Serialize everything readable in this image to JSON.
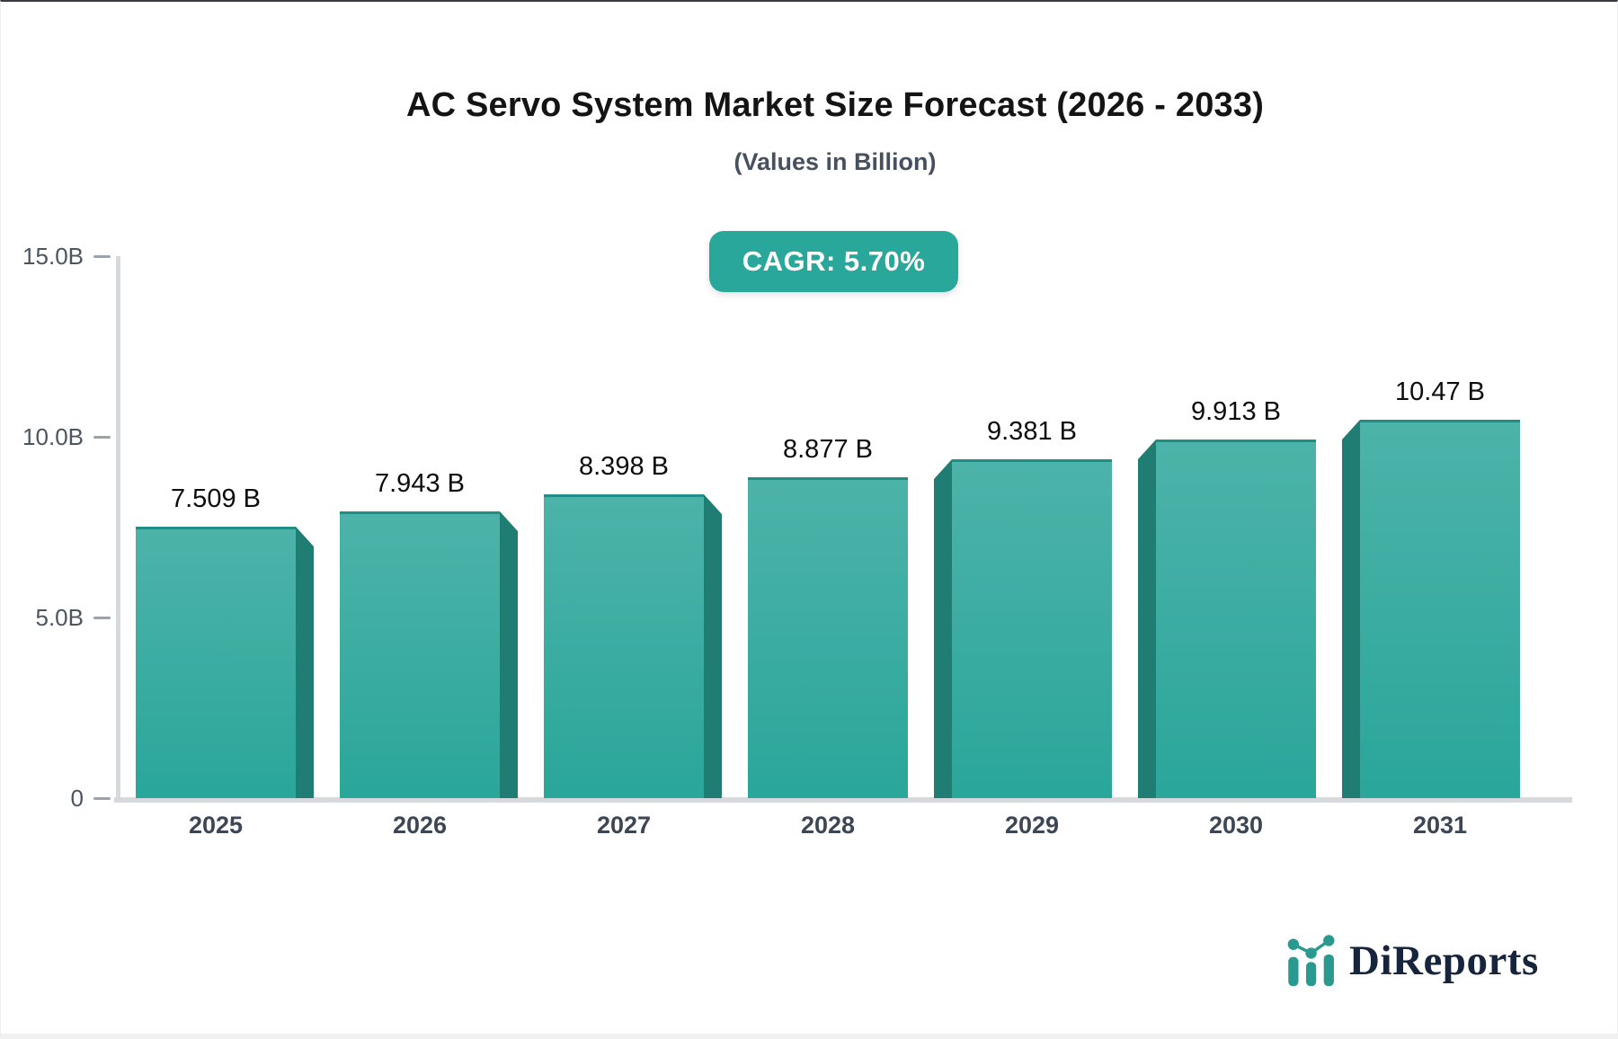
{
  "header": {
    "title": "AC Servo System Market Size Forecast (2026 - 2033)",
    "subtitle": "(Values in Billion)"
  },
  "badge": {
    "label": "CAGR: 5.70%"
  },
  "chart_data": {
    "type": "bar",
    "title": "AC Servo System Market Size Forecast (2026 - 2033)",
    "subtitle": "(Values in Billion)",
    "unit": "Billion",
    "categories": [
      "2025",
      "2026",
      "2027",
      "2028",
      "2029",
      "2030",
      "2031"
    ],
    "values": [
      7.509,
      7.943,
      8.398,
      8.877,
      9.381,
      9.913,
      10.47
    ],
    "value_labels": [
      "7.509 B",
      "7.943 B",
      "8.398 B",
      "8.877 B",
      "9.381 B",
      "9.913 B",
      "10.47 B"
    ],
    "ylim": [
      0,
      15
    ],
    "yticks": [
      {
        "label": "15.0B",
        "value": 15
      },
      {
        "label": "10.0B",
        "value": 10
      },
      {
        "label": "5.0B",
        "value": 5
      },
      {
        "label": "0",
        "value": 0
      }
    ],
    "grid": false,
    "legend": "none",
    "bar_style": "3d-bevel"
  },
  "logo": {
    "text": "DiReports",
    "icon": "mini-bar-chart-icon"
  },
  "colors": {
    "accent": "#2aa79b",
    "bar_top": "#4db3a9",
    "bar_bottom": "#2aa69a",
    "bar_side": "#1f7d73",
    "axis": "#d6d9de",
    "title_text": "#141414",
    "subtitle_text": "#46505e",
    "logo_navy": "#16243c",
    "logo_teal": "#2a9a90"
  }
}
